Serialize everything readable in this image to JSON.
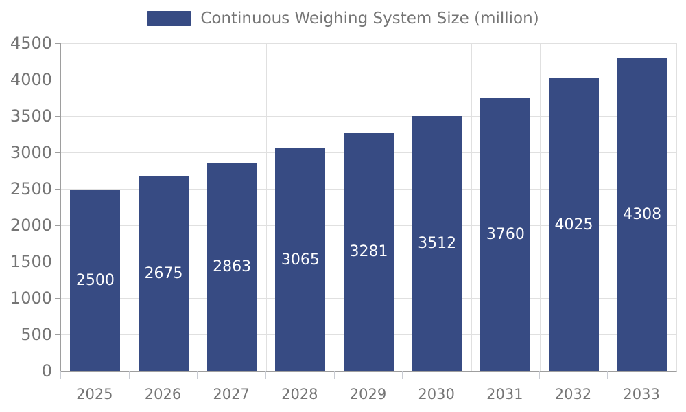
{
  "legend": {
    "items": [
      {
        "label": "Continuous Weighing System Size (million)",
        "color": "#374b83"
      }
    ]
  },
  "chart_data": {
    "type": "bar",
    "title": "",
    "categories": [
      "2025",
      "2026",
      "2027",
      "2028",
      "2029",
      "2030",
      "2031",
      "2032",
      "2033"
    ],
    "series": [
      {
        "name": "Continuous Weighing System Size (million)",
        "values": [
          2500,
          2675,
          2863,
          3065,
          3281,
          3512,
          3760,
          4025,
          4308
        ]
      }
    ],
    "xlabel": "",
    "ylabel": "",
    "ylim": [
      0,
      4500
    ],
    "ytick_step": 500,
    "yticks": [
      0,
      500,
      1000,
      1500,
      2000,
      2500,
      3000,
      3500,
      4000,
      4500
    ],
    "grid": true,
    "legend_position": "top-center",
    "bar_labels_visible": true,
    "colors": {
      "bar": "#374b83",
      "grid": "#e0e0e0",
      "axis": "#9e9e9e",
      "x_tick": "#c9ccd3",
      "text": "#757575",
      "bar_label": "#ffffff",
      "background": "#ffffff"
    }
  }
}
